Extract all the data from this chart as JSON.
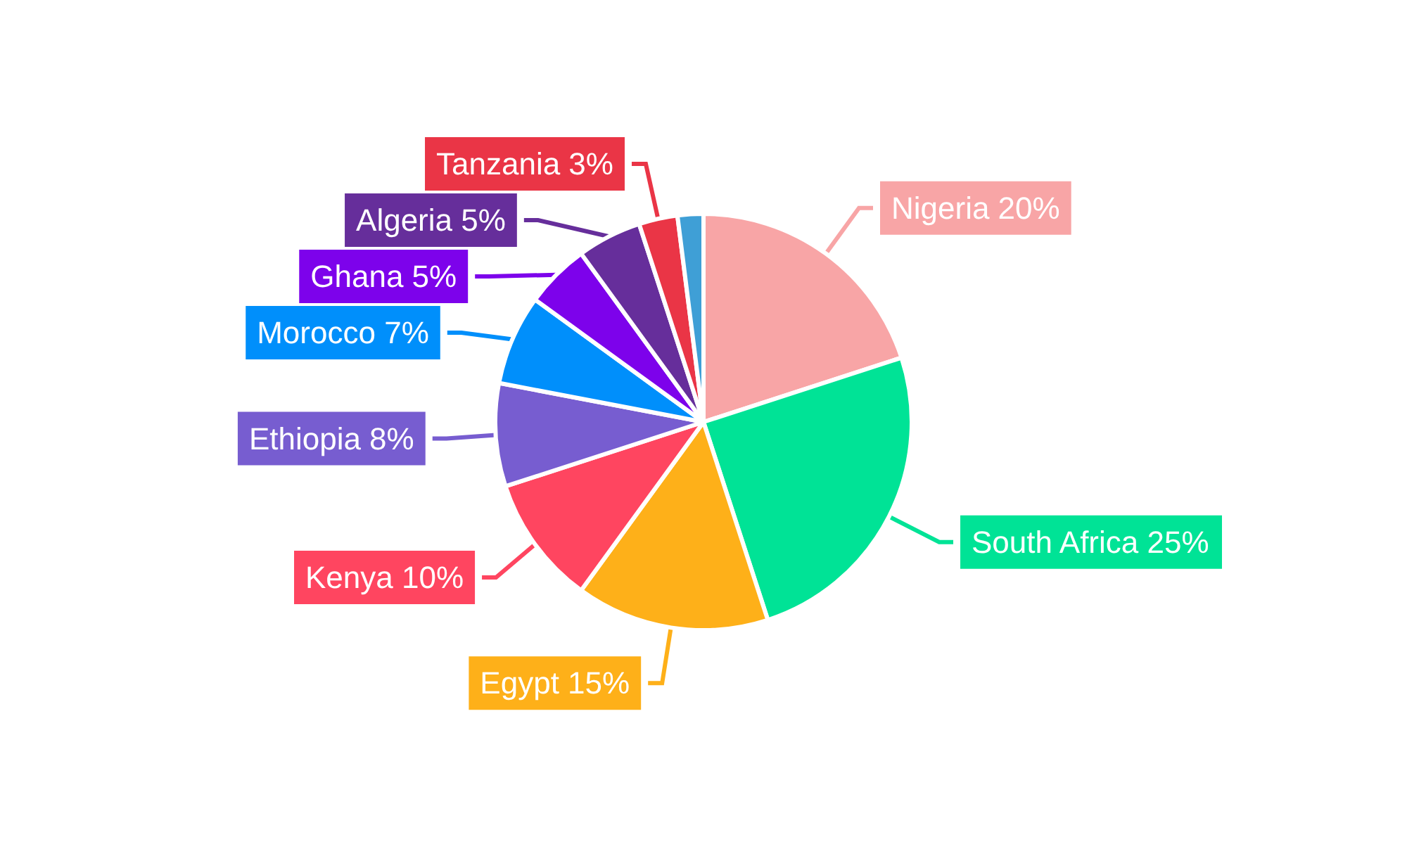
{
  "chart_data": {
    "type": "pie",
    "categories": [
      "Nigeria",
      "South Africa",
      "Egypt",
      "Kenya",
      "Ethiopia",
      "Morocco",
      "Ghana",
      "Algeria",
      "Tanzania",
      null
    ],
    "values": [
      20,
      25,
      15,
      10,
      8,
      7,
      5,
      5,
      3,
      2
    ],
    "value_labels": [
      "20%",
      "25%",
      "15%",
      "10%",
      "8%",
      "7%",
      "5%",
      "5%",
      "3%",
      null
    ],
    "colors": [
      "#f8a5a6",
      "#00e396",
      "#feb019",
      "#ff4560",
      "#775dd0",
      "#008ffb",
      "#7d02eb",
      "#662e9b",
      "#ea3546",
      "#3f9fd6"
    ],
    "legend": false
  }
}
